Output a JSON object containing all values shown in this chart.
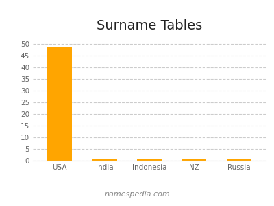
{
  "title": "Surname Tables",
  "categories": [
    "USA",
    "India",
    "Indonesia",
    "NZ",
    "Russia"
  ],
  "values": [
    49,
    1,
    1,
    1,
    1
  ],
  "bar_color": "#FFA500",
  "background_color": "#ffffff",
  "ylim": [
    0,
    53
  ],
  "yticks": [
    0,
    5,
    10,
    15,
    20,
    25,
    30,
    35,
    40,
    45,
    50
  ],
  "grid_color": "#cccccc",
  "footer_text": "namespedia.com",
  "title_fontsize": 14,
  "tick_fontsize": 7.5,
  "footer_fontsize": 8
}
